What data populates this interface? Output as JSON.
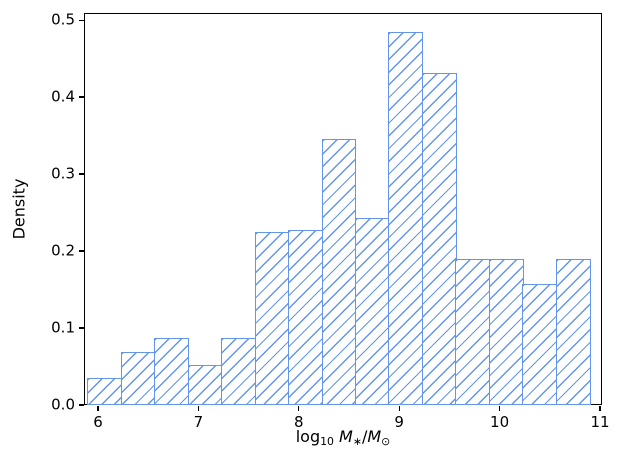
{
  "chart_data": {
    "type": "bar",
    "subtype": "histogram",
    "title": "",
    "xlabel": "log10 M*/M⊙",
    "xlabel_parts": [
      {
        "text": "log",
        "style": "roman"
      },
      {
        "text": "10",
        "style": "sub"
      },
      {
        "text": " ",
        "style": "roman"
      },
      {
        "text": "M",
        "style": "italic"
      },
      {
        "text": "∗",
        "style": "sub"
      },
      {
        "text": "/",
        "style": "roman"
      },
      {
        "text": "M",
        "style": "italic"
      },
      {
        "text": "⊙",
        "style": "sub"
      }
    ],
    "ylabel": "Density",
    "bin_edges": [
      5.9,
      6.233,
      6.567,
      6.9,
      7.233,
      7.567,
      7.9,
      8.233,
      8.567,
      8.9,
      9.233,
      9.567,
      9.9,
      10.233,
      10.567,
      10.9
    ],
    "values": [
      0.035,
      0.069,
      0.087,
      0.052,
      0.087,
      0.225,
      0.227,
      0.346,
      0.243,
      0.484,
      0.432,
      0.19,
      0.19,
      0.157,
      0.19
    ],
    "xlim": [
      5.87,
      11.02
    ],
    "ylim": [
      0,
      0.508
    ],
    "xticks": [
      {
        "value": 6,
        "label": "6"
      },
      {
        "value": 7,
        "label": "7"
      },
      {
        "value": 8,
        "label": "8"
      },
      {
        "value": 9,
        "label": "9"
      },
      {
        "value": 10,
        "label": "10"
      },
      {
        "value": 11,
        "label": "11"
      }
    ],
    "yticks": [
      {
        "value": 0.0,
        "label": "0.0"
      },
      {
        "value": 0.1,
        "label": "0.1"
      },
      {
        "value": 0.2,
        "label": "0.2"
      },
      {
        "value": 0.3,
        "label": "0.3"
      },
      {
        "value": 0.4,
        "label": "0.4"
      },
      {
        "value": 0.5,
        "label": "0.5"
      }
    ],
    "grid": false,
    "legend": null,
    "bar_fill": "#ffffff",
    "bar_edge_color": "#6495ED",
    "hatch": "/",
    "axis_color": "#000000"
  }
}
